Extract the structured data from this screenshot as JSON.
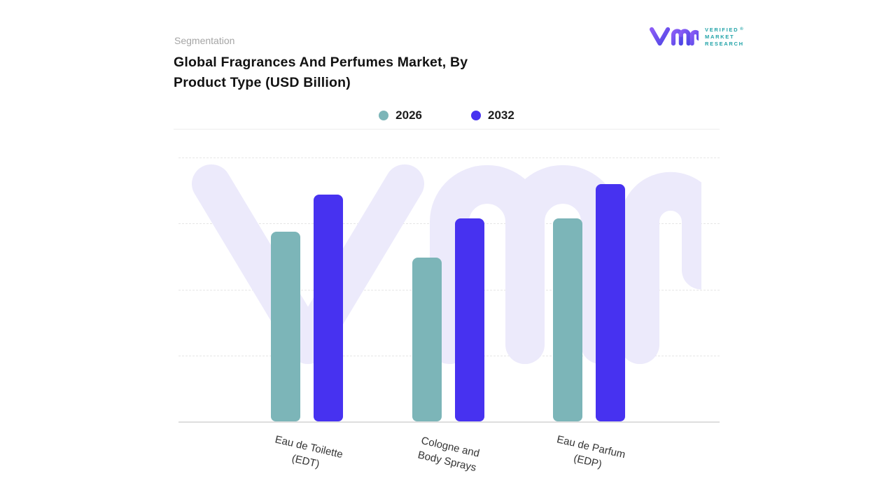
{
  "header": {
    "eyebrow": "Segmentation",
    "title_line1": "Global Fragrances And Perfumes Market, By",
    "title_line2": "Product Type (USD Billion)"
  },
  "logo": {
    "lines": [
      "VERIFIED",
      "MARKET",
      "RESEARCH"
    ],
    "registered_mark": "®",
    "monogram": "vmr-monogram",
    "text_color": "#21a3a8",
    "monogram_colors": [
      "#8b5cf6",
      "#4f46e5"
    ]
  },
  "legend": [
    {
      "label": "2026",
      "color": "#7cb5b8"
    },
    {
      "label": "2032",
      "color": "#4732f0"
    }
  ],
  "watermark": {
    "name": "vmr-watermark",
    "color": "#eceafb"
  },
  "chart_data": {
    "type": "bar",
    "title": "Global Fragrances And Perfumes Market, By Product Type (USD Billion)",
    "categories": [
      "Eau de Toilette (EDT)",
      "Cologne and Body Sprays",
      "Eau de Parfum (EDP)"
    ],
    "category_label_lines": [
      [
        "Eau de Toilette",
        "(EDT)"
      ],
      [
        "Cologne and",
        "Body Sprays"
      ],
      [
        "Eau de Parfum",
        "(EDP)"
      ]
    ],
    "series": [
      {
        "name": "2026",
        "color": "#7cb5b8",
        "values": [
          72,
          62,
          77
        ]
      },
      {
        "name": "2032",
        "color": "#4732f0",
        "values": [
          86,
          77,
          90
        ]
      }
    ],
    "xlabel": "",
    "ylabel": "",
    "ylim": [
      0,
      100
    ],
    "value_scale_note": "No numeric y-axis labels shown; values estimated as percent of plot height",
    "grid": "horizontal-dashed",
    "y_axis_labels_visible": false,
    "legend_position": "top-center"
  }
}
